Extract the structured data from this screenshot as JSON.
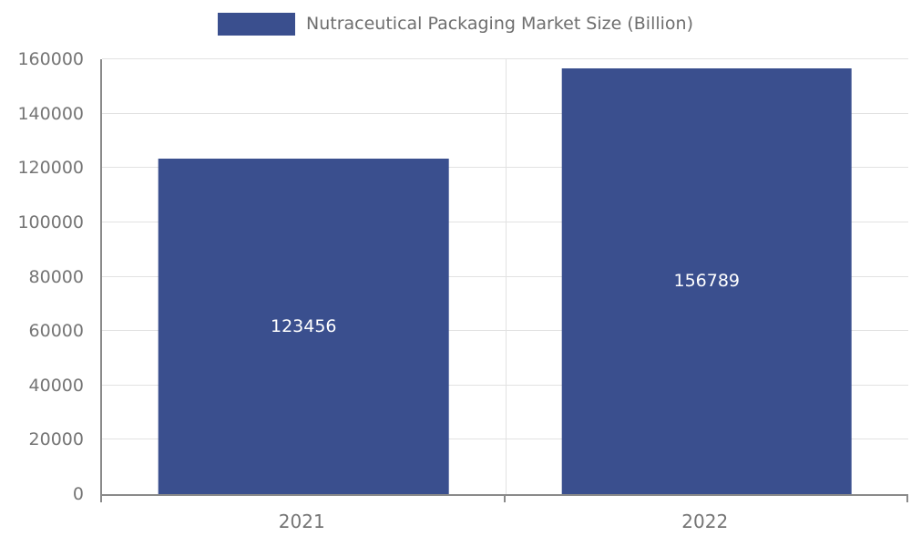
{
  "legend": {
    "swatch_color": "#3A4F8E"
  },
  "chart_data": {
    "type": "bar",
    "title": "Nutraceutical Packaging Market Size (Billion)",
    "categories": [
      "2021",
      "2022"
    ],
    "values": [
      123456,
      156789
    ],
    "value_labels": [
      "123456",
      "156789"
    ],
    "xlabel": "",
    "ylabel": "",
    "ylim": [
      0,
      160000
    ],
    "yticks": [
      0,
      20000,
      40000,
      60000,
      80000,
      100000,
      120000,
      140000,
      160000
    ],
    "grid": true,
    "legend_position": "top",
    "bar_color": "#3A4F8E",
    "bar_label_color": "#ffffff",
    "axis_text_color": "#757575",
    "gridline_color": "#e2e2e2",
    "axis_line_color": "#8a8a8a"
  }
}
